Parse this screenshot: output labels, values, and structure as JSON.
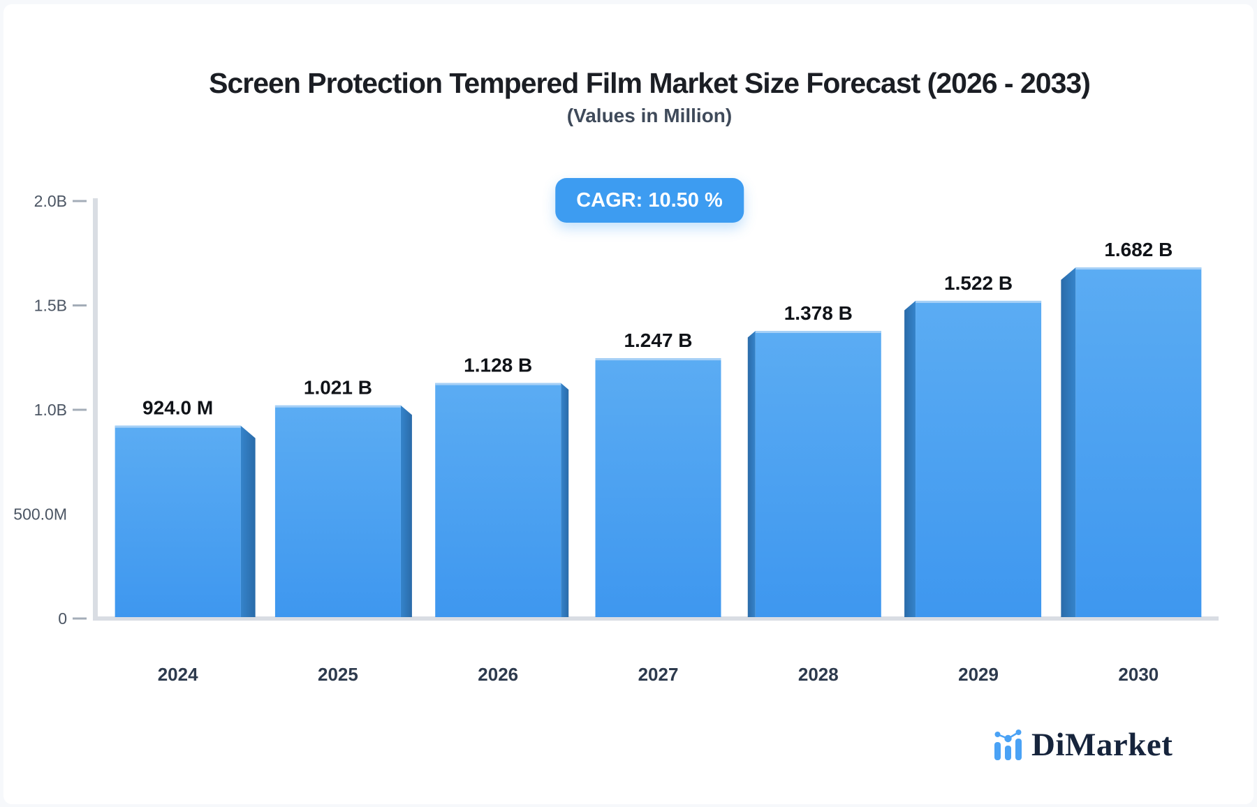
{
  "header": {
    "title": "Screen Protection Tempered Film Market Size Forecast (2026 - 2033)",
    "subtitle": "(Values in Million)",
    "cagr_label": "CAGR: 10.50 %"
  },
  "chart_data": {
    "type": "bar",
    "title": "Screen Protection Tempered Film Market Size Forecast (2026 - 2033)",
    "subtitle": "(Values in Million)",
    "categories": [
      "2024",
      "2025",
      "2026",
      "2027",
      "2028",
      "2029",
      "2030"
    ],
    "values_millions": [
      924,
      1021,
      1128,
      1247,
      1378,
      1522,
      1682
    ],
    "bar_labels": [
      "924.0 M",
      "1.021 B",
      "1.128 B",
      "1.247 B",
      "1.378 B",
      "1.522 B",
      "1.682 B"
    ],
    "y_ticks": [
      {
        "label": "2.0B",
        "value": 2000,
        "dash": true
      },
      {
        "label": "1.5B",
        "value": 1500,
        "dash": true
      },
      {
        "label": "1.0B",
        "value": 1000,
        "dash": true
      },
      {
        "label": "500.0M",
        "value": 500,
        "dash": false
      },
      {
        "label": "0",
        "value": 0,
        "dash": true
      }
    ],
    "ylim": [
      0,
      2000
    ],
    "grid": false,
    "legend": "none",
    "colors": {
      "bar_face_top": "#5bacf3",
      "bar_face_bottom": "#3e97ef",
      "bar_top_edge": "#a6d0f6",
      "bar_side_inner": "#3584cb",
      "bar_side_outer": "#2a6ba9",
      "axis_line": "#d9dde3",
      "tick_dash": "#a4adb8",
      "y_tick_text": "#4b5563",
      "x_tick_text": "#2d3a4d",
      "value_label_text": "#101318",
      "accent_blue": "#3d9cf1"
    }
  },
  "logo": {
    "text": "DiMarket",
    "icon_name": "mini-bar-chart-icon",
    "icon_color": "#4aa2f5",
    "text_color": "#16243c"
  }
}
